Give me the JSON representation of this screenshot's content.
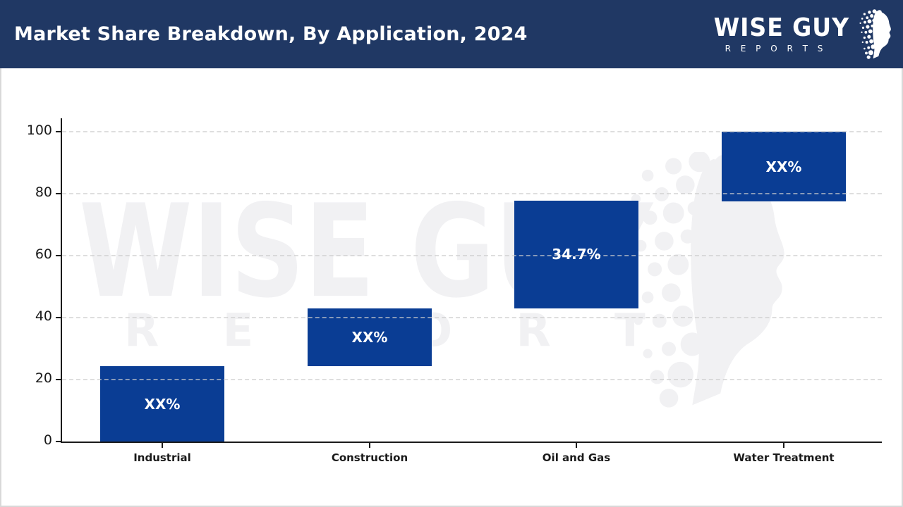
{
  "header": {
    "title": "Market Share Breakdown, By Application, 2024",
    "background_color": "#203864",
    "logo": {
      "wordmark": "WISE GUY",
      "subtext": "R E P O R T S",
      "face_icon": "dotted-face-profile"
    }
  },
  "watermark": {
    "line1": "WISE GUY",
    "line2": "R E P O R T S"
  },
  "chart_data": {
    "type": "bar",
    "subtype": "floating-waterfall",
    "title": "Market Share Breakdown, By Application, 2024",
    "categories": [
      "Industrial",
      "Construction",
      "Oil and Gas",
      "Water Treatment"
    ],
    "segments": [
      {
        "category": "Industrial",
        "start": 0,
        "end": 24.3,
        "label": "XX%"
      },
      {
        "category": "Construction",
        "start": 24.3,
        "end": 43.0,
        "label": "XX%"
      },
      {
        "category": "Oil and Gas",
        "start": 43.0,
        "end": 77.7,
        "label": "34.7%"
      },
      {
        "category": "Water Treatment",
        "start": 77.5,
        "end": 100.0,
        "label": "XX%"
      }
    ],
    "yticks": [
      0,
      20,
      40,
      60,
      80,
      100
    ],
    "ylim": [
      0,
      104
    ],
    "xlabel": "",
    "ylabel": "",
    "legend": "none",
    "grid": "horizontal-dashed-over-bars",
    "bar_color": "#0a3d94",
    "bar_label_color": "#ffffff",
    "axis_color": "#1a1a1a"
  }
}
